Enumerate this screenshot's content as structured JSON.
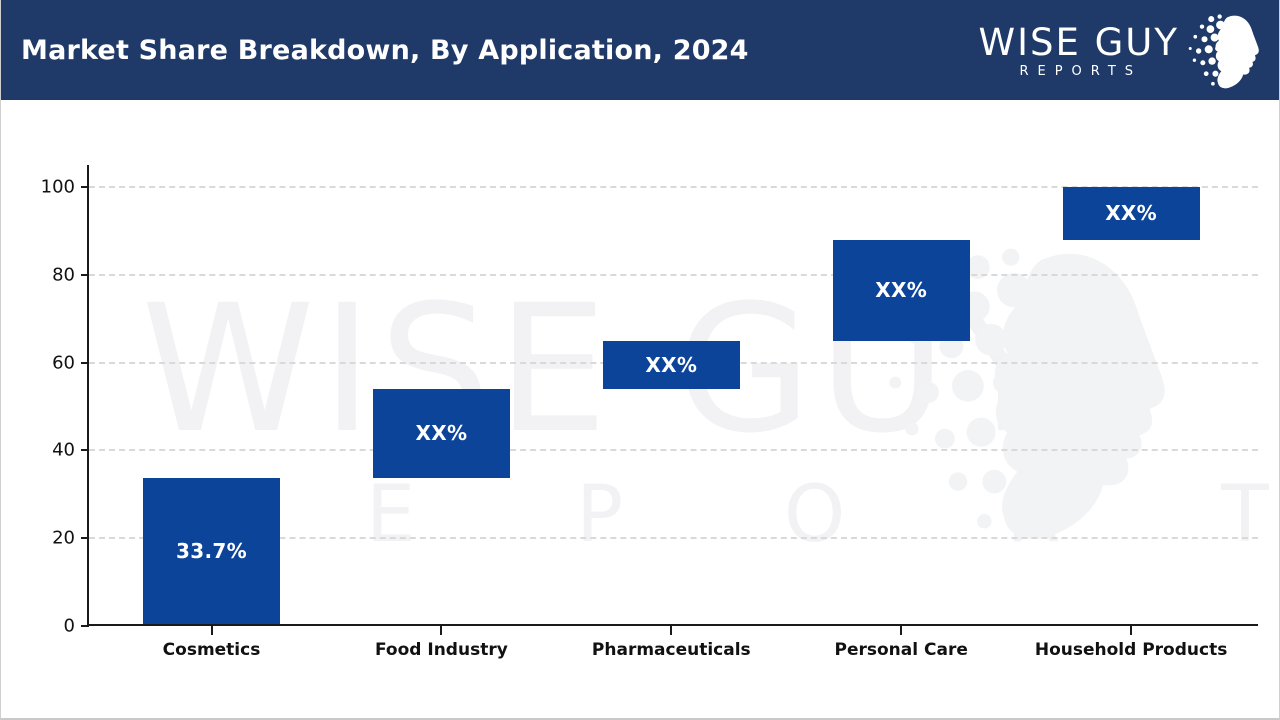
{
  "header": {
    "title": "Market Share Breakdown, By Application, 2024",
    "logo": {
      "line1": "WISE GUY",
      "line2": "REPORTS"
    }
  },
  "watermark": {
    "line1": "WISE GUY",
    "line2": "R E P O R T S"
  },
  "colors": {
    "header_bg": "#1f3a68",
    "bar": "#0c4499",
    "bar_label": "#ffffff",
    "gridline": "#d9d9d9",
    "axis": "#1a1a1a",
    "watermark": "#f2f2f4"
  },
  "chart_data": {
    "type": "bar",
    "subtype": "waterfall",
    "title": "Market Share Breakdown, By Application, 2024",
    "xlabel": "",
    "ylabel": "",
    "ylim": [
      0,
      105
    ],
    "yticks": [
      0,
      20,
      40,
      60,
      80,
      100
    ],
    "grid": "horizontal-dashed",
    "legend": "none",
    "categories": [
      "Cosmetics",
      "Food Industry",
      "Pharmaceuticals",
      "Personal Care",
      "Household Products"
    ],
    "segments": [
      {
        "category": "Cosmetics",
        "start": 0,
        "end": 33.7,
        "label": "33.7%"
      },
      {
        "category": "Food Industry",
        "start": 33.7,
        "end": 54,
        "label": "XX%"
      },
      {
        "category": "Pharmaceuticals",
        "start": 54,
        "end": 65,
        "label": "XX%"
      },
      {
        "category": "Personal Care",
        "start": 65,
        "end": 88,
        "label": "XX%"
      },
      {
        "category": "Household Products",
        "start": 88,
        "end": 100,
        "label": "XX%"
      }
    ]
  }
}
